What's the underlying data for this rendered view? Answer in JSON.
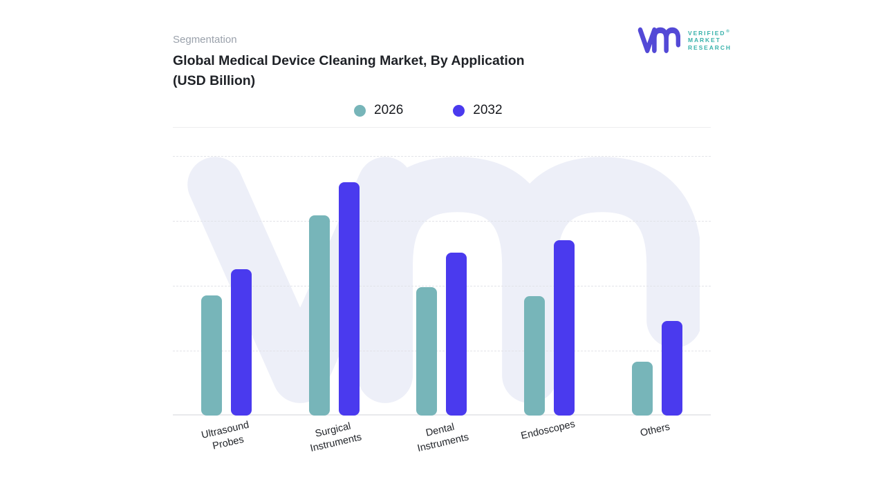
{
  "header": {
    "eyebrow": "Segmentation",
    "title_line1": "Global Medical Device Cleaning Market, By Application",
    "title_line2": "(USD Billion)"
  },
  "logo": {
    "monogram": "vmr-monogram",
    "monogram_color": "#5349D6",
    "text_color": "#38B2AB",
    "lines": [
      "VERIFIED",
      "MARKET",
      "RESEARCH"
    ],
    "registered_mark": "®"
  },
  "legend": [
    {
      "label": "2026",
      "color": "#77B5B9"
    },
    {
      "label": "2032",
      "color": "#4A3AEE"
    }
  ],
  "chart_data": {
    "type": "bar",
    "title": "Global Medical Device Cleaning Market, By Application (USD Billion)",
    "categories": [
      "Ultrasound Probes",
      "Surgical Instruments",
      "Dental Instruments",
      "Endoscopes",
      "Others"
    ],
    "x_tick_label_lines": [
      [
        "Ultrasound",
        "Probes"
      ],
      [
        "Surgical",
        "Instruments"
      ],
      [
        "Dental",
        "Instruments"
      ],
      [
        "Endoscopes"
      ],
      [
        "Others"
      ]
    ],
    "series": [
      {
        "name": "2026",
        "color": "#77B5B9",
        "values": [
          1.85,
          3.09,
          1.98,
          1.84,
          0.83
        ]
      },
      {
        "name": "2032",
        "color": "#4A3AEE",
        "values": [
          2.26,
          3.6,
          2.51,
          2.7,
          1.46
        ]
      }
    ],
    "xlabel": "",
    "ylabel": "",
    "y_axis": {
      "tick_labels_visible": false,
      "ylim": [
        0,
        4
      ],
      "gridline_interval": 1,
      "grid_style": "dashed"
    },
    "value_scale_note": "no numeric y-axis shown; values estimated in gridline units",
    "legend_position": "top",
    "watermark_color": "#EDEFF8"
  }
}
